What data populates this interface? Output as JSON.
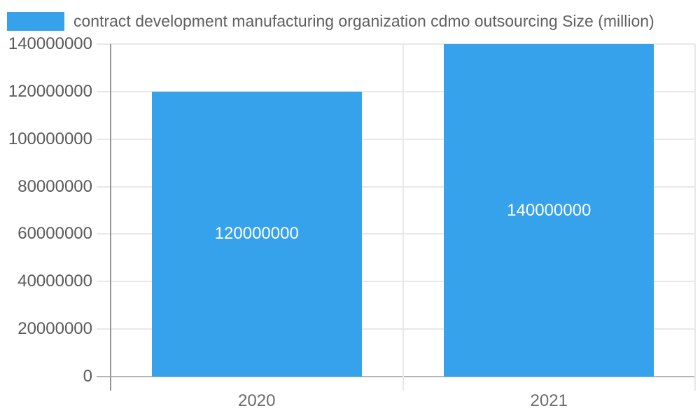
{
  "legend": {
    "label": "contract development manufacturing organization cdmo outsourcing Size (million)"
  },
  "chart_data": {
    "type": "bar",
    "title": "",
    "categories": [
      "2020",
      "2021"
    ],
    "series": [
      {
        "name": "contract development manufacturing organization cdmo outsourcing Size (million)",
        "values": [
          120000000,
          140000000
        ]
      }
    ],
    "data_labels": [
      "120000000",
      "140000000"
    ],
    "xlabel": "",
    "ylabel": "",
    "ylim": [
      0,
      140000000
    ],
    "y_tick_step": 20000000,
    "y_tick_labels": [
      "140000000",
      "120000000",
      "100000000",
      "80000000",
      "60000000",
      "40000000",
      "20000000",
      "0"
    ],
    "grid": true,
    "legend_position": "top-left",
    "colors": {
      "bar": "#36A2EB",
      "gridline": "#E8E8E8",
      "baseline": "#B5B5B5",
      "axis_line": "#969696",
      "y_label": "#595959",
      "x_label": "#6B6B6B",
      "legend_text": "#606060",
      "data_label": "#FFFFFF",
      "background": "#FFFFFF"
    }
  }
}
